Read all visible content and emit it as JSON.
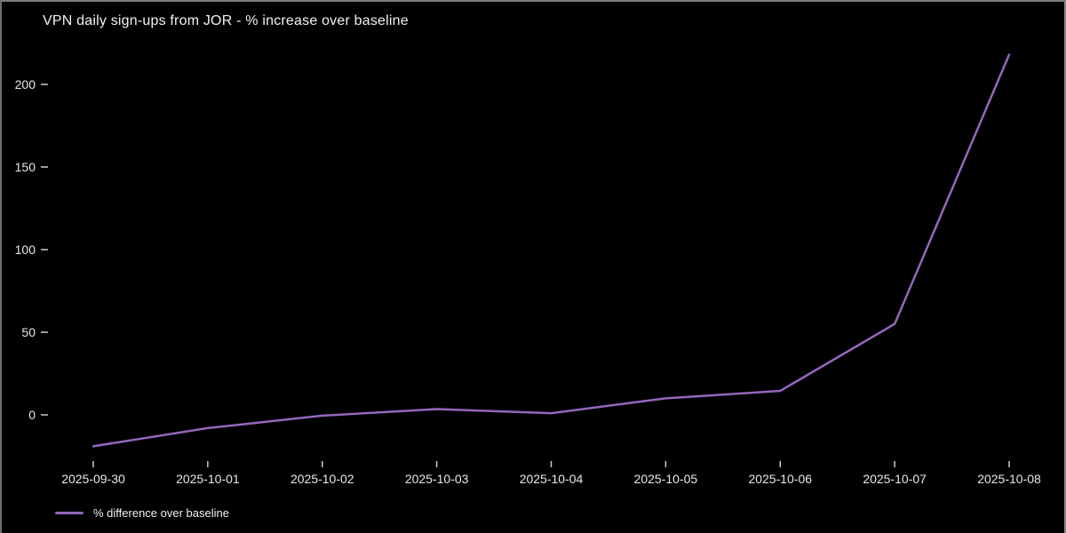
{
  "window": {
    "background_color": "#000000",
    "border_color": "#7b7b7b",
    "text_color": "#f2f2f2",
    "tick_color": "#cccccc"
  },
  "legend": {
    "label": "% difference over baseline",
    "position": "lower left"
  },
  "chart_data": {
    "type": "line",
    "title": "VPN daily sign-ups from JOR - % increase over baseline",
    "categories": [
      "2025-09-30",
      "2025-10-01",
      "2025-10-02",
      "2025-10-03",
      "2025-10-04",
      "2025-10-05",
      "2025-10-06",
      "2025-10-07",
      "2025-10-08"
    ],
    "series": [
      {
        "name": "% difference over baseline",
        "values": [
          -19,
          -8,
          -0.5,
          3.5,
          1,
          10,
          14.5,
          55,
          218
        ],
        "color": "#9467bd"
      }
    ],
    "xlabel": "",
    "ylabel": "",
    "yticks": [
      0,
      50,
      100,
      150,
      200
    ],
    "ylim": [
      -25,
      225
    ],
    "grid": false,
    "legend_position": "lower left",
    "background_color": "#000000",
    "text_color": "#e8e8e8",
    "line_color": "#9467bd"
  }
}
